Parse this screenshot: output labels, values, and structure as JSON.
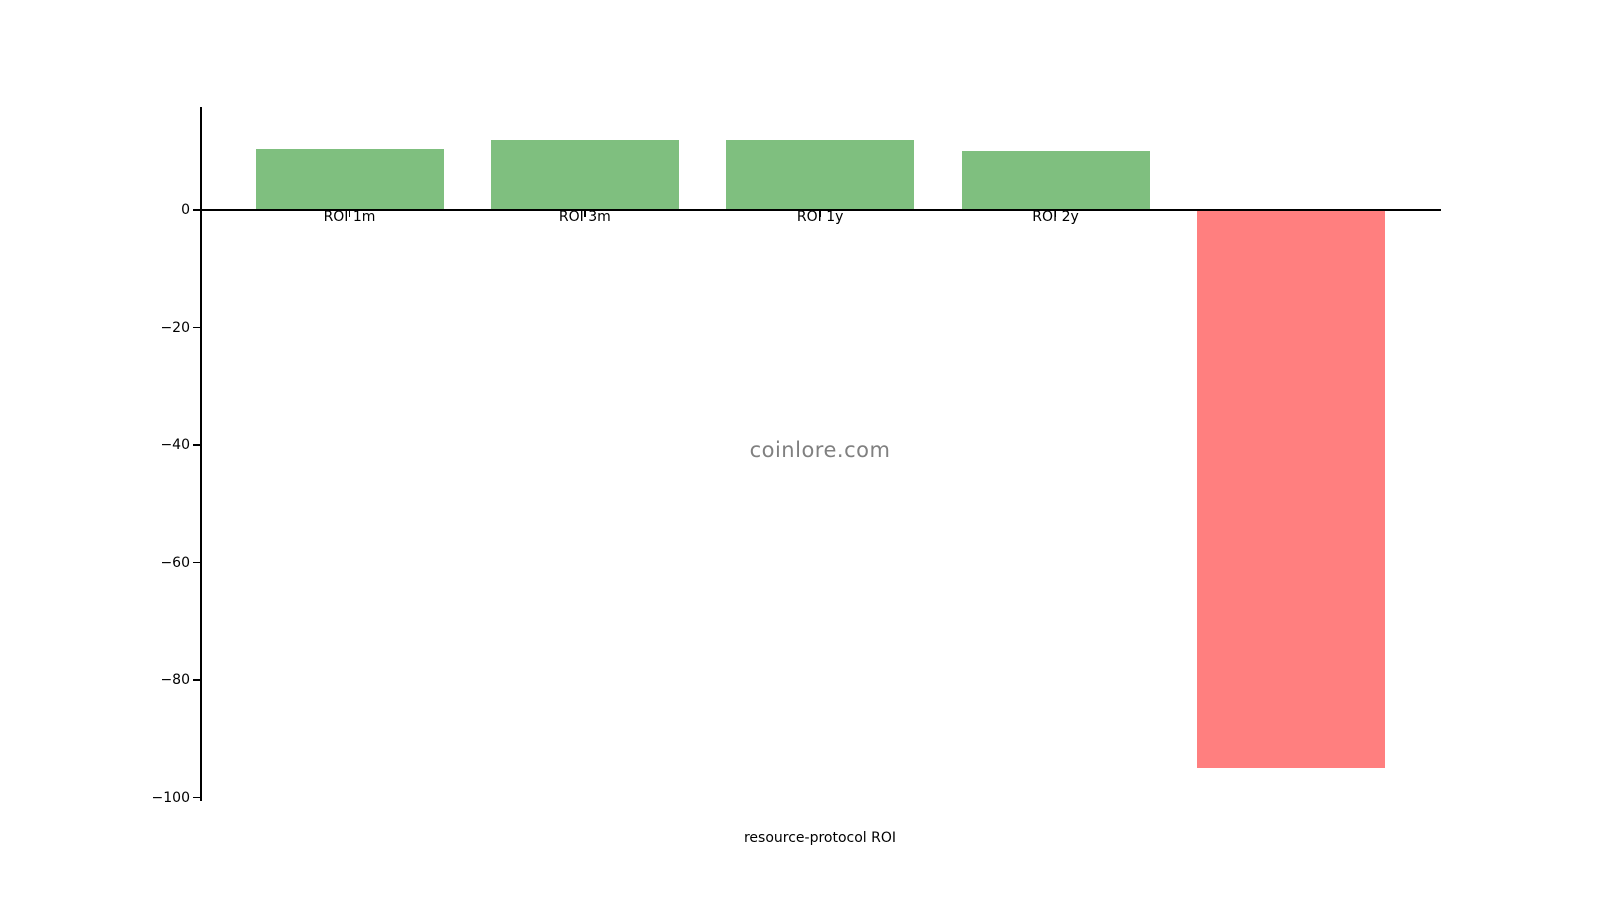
{
  "chart_data": {
    "type": "bar",
    "title": "resource-protocol ROI",
    "watermark": "coinlore.com",
    "categories": [
      "ROI 1m",
      "ROI 3m",
      "ROI 1y",
      "ROI 2y",
      ""
    ],
    "values": [
      10.4,
      12.0,
      11.9,
      10.0,
      -95.0
    ],
    "bar_colors": [
      "#7fbf7f",
      "#7fbf7f",
      "#7fbf7f",
      "#7fbf7f",
      "#ff7f7f"
    ],
    "positive_color": "#7fbf7f",
    "negative_color": "#ff7f7f",
    "xlabel": "",
    "ylabel": "",
    "ylim": [
      -101.5,
      17.5
    ],
    "yticks": [
      {
        "value": 0,
        "label": "0"
      },
      {
        "value": -20,
        "label": "−20"
      },
      {
        "value": -40,
        "label": "−40"
      },
      {
        "value": -60,
        "label": "−60"
      },
      {
        "value": -80,
        "label": "−80"
      },
      {
        "value": -100,
        "label": "−100"
      }
    ],
    "grid": false,
    "legend": "none",
    "axis_color": "#000000",
    "text_color": "#000000",
    "watermark_color": "#808080",
    "background_color": "#ffffff"
  }
}
